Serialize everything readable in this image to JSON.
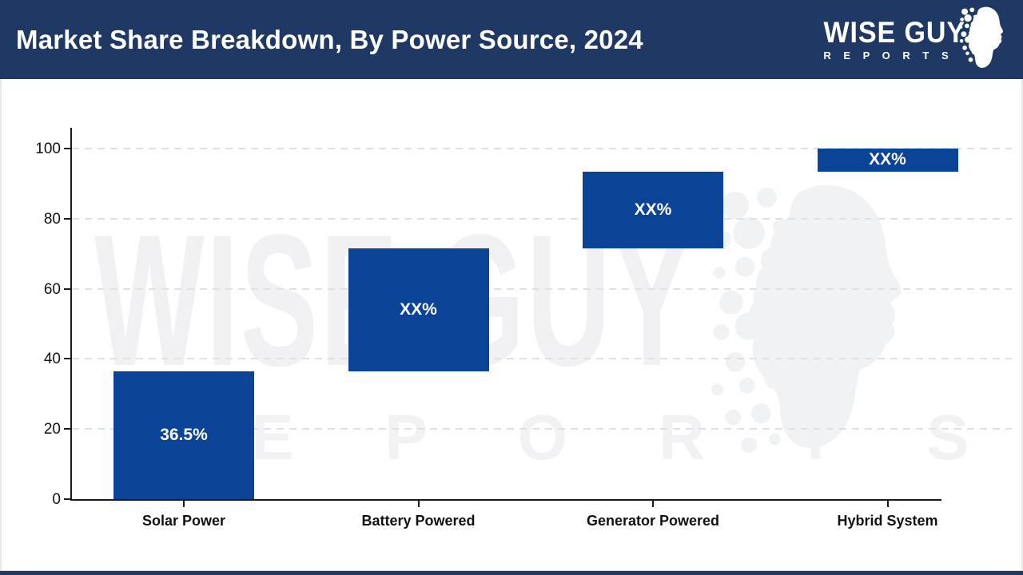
{
  "header": {
    "title": "Market Share Breakdown, By Power Source, 2024",
    "logo": {
      "line1": "WISE GUY",
      "line2": "R E P O R T S"
    }
  },
  "watermark": {
    "line1": "WISE GUY",
    "line2": "R E P O R T S"
  },
  "chart_data": {
    "type": "bar",
    "variant": "floating-waterfall",
    "title": "Market Share Breakdown, By Power Source, 2024",
    "categories": [
      "Solar Power",
      "Battery Powered",
      "Generator Powered",
      "Hybrid System"
    ],
    "bars": [
      {
        "category": "Solar Power",
        "start": 0,
        "end": 36.5,
        "value_label": "36.5%"
      },
      {
        "category": "Battery Powered",
        "start": 36.5,
        "end": 71.5,
        "value_label": "XX%"
      },
      {
        "category": "Generator Powered",
        "start": 71.5,
        "end": 93.5,
        "value_label": "XX%"
      },
      {
        "category": "Hybrid System",
        "start": 93.5,
        "end": 100,
        "value_label": "XX%"
      }
    ],
    "xlabel": "",
    "ylabel": "",
    "ylim": [
      0,
      100
    ],
    "yticks": [
      0,
      20,
      40,
      60,
      80,
      100
    ],
    "grid": "horizontal-dashed",
    "legend": "none",
    "bar_color": "#0b4397",
    "bar_label_color": "#ffffff"
  },
  "colors": {
    "header_bg": "#1f3864",
    "footer_bg": "#1f3864",
    "bar_blue": "#0b4397",
    "grid_gray": "#e1e1e1",
    "axis_black": "#1a1a1a",
    "watermark_gray": "#f1f1f4"
  }
}
